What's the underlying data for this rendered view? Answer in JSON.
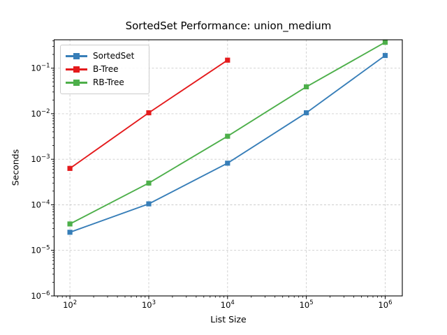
{
  "title": "SortedSet Performance: union_medium",
  "chart_data": {
    "type": "line",
    "x_scale": "log",
    "y_scale": "log",
    "title": "SortedSet Performance: union_medium",
    "xlabel": "List Size",
    "ylabel": "Seconds",
    "xlim": [
      63,
      1650000
    ],
    "ylim": [
      1e-06,
      0.42
    ],
    "x_tick_exponents": [
      2,
      3,
      4,
      5,
      6
    ],
    "y_tick_exponents": [
      -1,
      -2,
      -3,
      -4,
      -5,
      -6
    ],
    "grid": true,
    "grid_color": "#cccccc",
    "legend_position": "upper-left",
    "marker": "square",
    "series": [
      {
        "name": "SortedSet",
        "color": "#377eb8",
        "x": [
          100,
          1000,
          10000,
          100000,
          1000000
        ],
        "y": [
          2.5e-05,
          0.000105,
          0.00082,
          0.0105,
          0.19
        ]
      },
      {
        "name": "B-Tree",
        "color": "#e41a1c",
        "x": [
          100,
          1000,
          10000
        ],
        "y": [
          0.00063,
          0.0105,
          0.15
        ]
      },
      {
        "name": "RB-Tree",
        "color": "#4daf4a",
        "x": [
          100,
          1000,
          10000,
          100000,
          1000000
        ],
        "y": [
          3.8e-05,
          0.0003,
          0.0032,
          0.039,
          0.37
        ]
      }
    ]
  }
}
